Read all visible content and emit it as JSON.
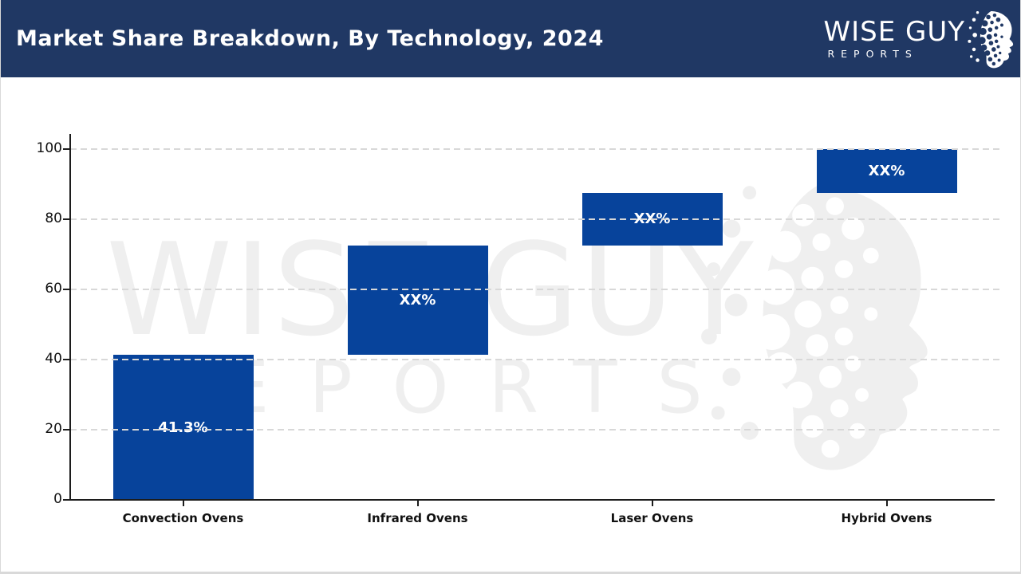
{
  "colors": {
    "header_bg": "#203864",
    "bar": "#07439b",
    "grid": "#d8d8d8",
    "axis": "#1c1c1c",
    "text": "#111111",
    "bar_label": "#ffffff",
    "watermark": "#efefef",
    "border": "#d9d9d9"
  },
  "header": {
    "title": "Market Share Breakdown, By Technology, 2024",
    "logo": {
      "line1": "WISE GUY",
      "line2": "REPORTS"
    }
  },
  "watermark": {
    "line1": "WISE GUY",
    "line2": "REPORTS"
  },
  "chart_data": {
    "type": "bar",
    "subtype": "waterfall",
    "title": "Market Share Breakdown, By Technology, 2024",
    "categories": [
      "Convection Ovens",
      "Infrared Ovens",
      "Laser Ovens",
      "Hybrid Ovens"
    ],
    "bars": [
      {
        "category": "Convection Ovens",
        "start": 0,
        "end": 41.3,
        "value": 41.3,
        "label": "41.3%"
      },
      {
        "category": "Infrared Ovens",
        "start": 41.3,
        "end": 72.6,
        "value": 31.3,
        "label": "XX%"
      },
      {
        "category": "Laser Ovens",
        "start": 72.6,
        "end": 87.5,
        "value": 14.9,
        "label": "XX%"
      },
      {
        "category": "Hybrid Ovens",
        "start": 87.5,
        "end": 100,
        "value": 12.5,
        "label": "XX%"
      }
    ],
    "xlabel": "",
    "ylabel": "",
    "ylim": [
      0,
      100
    ],
    "yticks": [
      0,
      20,
      40,
      60,
      80,
      100
    ],
    "grid": "horizontal-dashed",
    "legend": false,
    "bar_color": "#07439b"
  }
}
